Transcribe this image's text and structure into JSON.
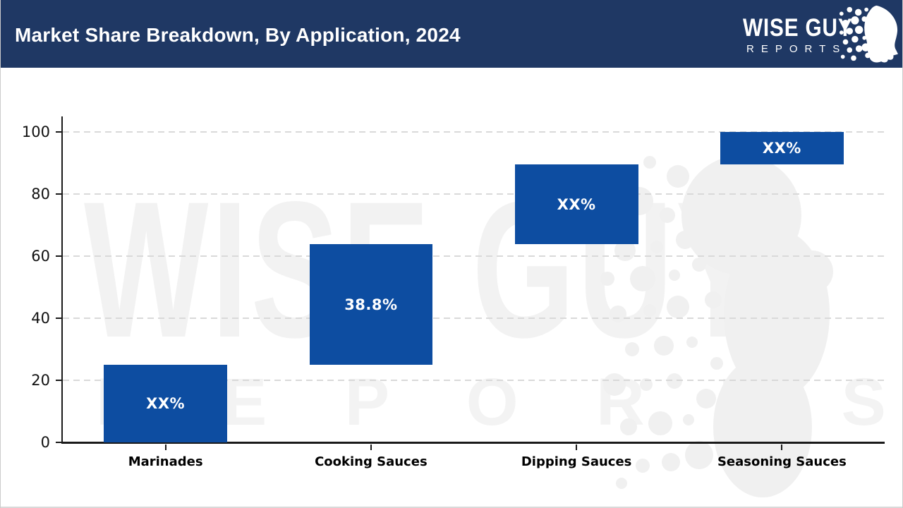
{
  "header": {
    "title": "Market Share Breakdown, By Application, 2024",
    "logo": {
      "wordmark": "WISE GUY",
      "subtitle": "REPORTS"
    }
  },
  "watermark": {
    "wordmark": "WISE GUY",
    "subtitle": "R E P O R T S"
  },
  "icons": {
    "logo_head": "dotted-head-profile-icon",
    "watermark_head": "dotted-head-profile-icon"
  },
  "chart_data": {
    "type": "bar",
    "variant": "floating-segment-waterfall",
    "title": "Market Share Breakdown, By Application, 2024",
    "categories": [
      "Marinades",
      "Cooking Sauces",
      "Dipping Sauces",
      "Seasoning Sauces"
    ],
    "segments": [
      {
        "category": "Marinades",
        "start": 0,
        "end": 25,
        "label": "XX%"
      },
      {
        "category": "Cooking Sauces",
        "start": 25,
        "end": 63.8,
        "label": "38.8%"
      },
      {
        "category": "Dipping Sauces",
        "start": 63.8,
        "end": 89.5,
        "label": "XX%"
      },
      {
        "category": "Seasoning Sauces",
        "start": 89.5,
        "end": 100,
        "label": "XX%"
      }
    ],
    "yticks": [
      0,
      20,
      40,
      60,
      80,
      100
    ],
    "ylim": [
      0,
      100
    ],
    "xlabel": "",
    "ylabel": "",
    "legend": null,
    "grid": "horizontal-dashed",
    "bar_width_fraction": 0.15,
    "bar_color": "#0d4da1",
    "bar_label_color": "#ffffff",
    "axis_color": "#1a1a1a",
    "grid_color": "#d9d9d9"
  }
}
